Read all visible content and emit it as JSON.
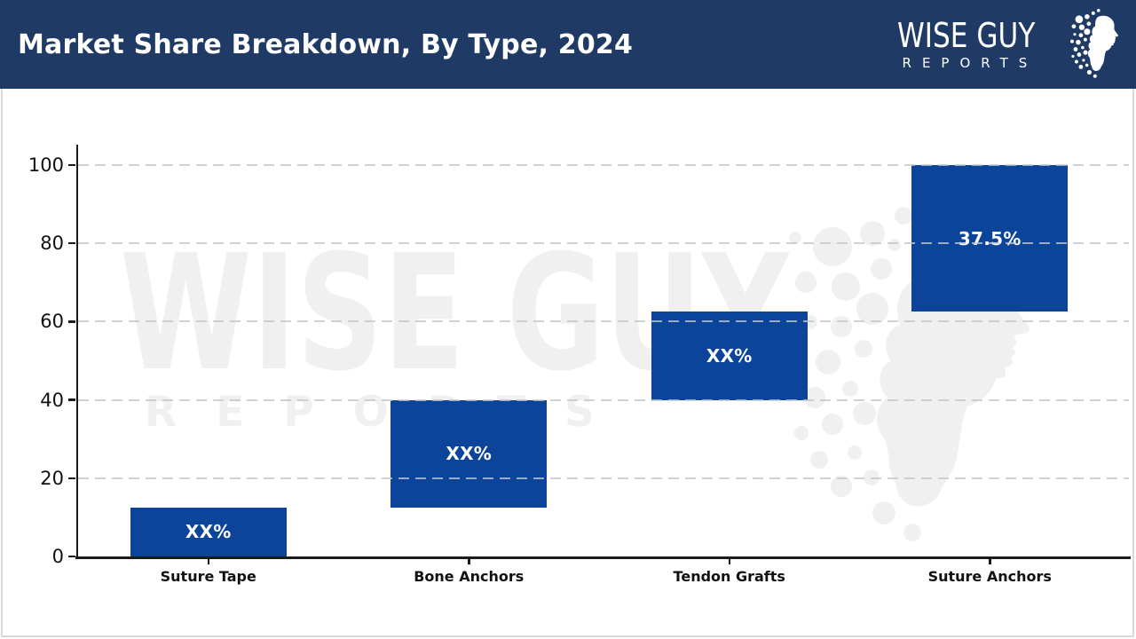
{
  "header": {
    "title": "Market Share Breakdown, By Type, 2024",
    "logo": {
      "line1": "WISE GUY",
      "line2": "REPORTS"
    }
  },
  "watermark": {
    "line1": "WISE GUY",
    "line2": "REPORTS"
  },
  "colors": {
    "header_bg": "#203a66",
    "bar": "#0b4499",
    "bar_label": "#ffffff",
    "axis": "#1a1a1a",
    "grid": "#cccccc",
    "watermark": "#f0f0f0",
    "frame_border": "#d9d9d9"
  },
  "chart_data": {
    "type": "bar",
    "subtype": "waterfall",
    "title": "Market Share Breakdown, By Type, 2024",
    "categories": [
      "Suture Tape",
      "Bone Anchors",
      "Tendon Grafts",
      "Suture Anchors"
    ],
    "values": [
      12.5,
      27.5,
      22.5,
      37.5
    ],
    "bar_labels": [
      "XX%",
      "XX%",
      "XX%",
      "37.5%"
    ],
    "segments": [
      {
        "category": "Suture Tape",
        "label": "XX%",
        "start": 0,
        "end": 12.5
      },
      {
        "category": "Bone Anchors",
        "label": "XX%",
        "start": 12.5,
        "end": 40
      },
      {
        "category": "Tendon Grafts",
        "label": "XX%",
        "start": 40,
        "end": 62.5
      },
      {
        "category": "Suture Anchors",
        "label": "37.5%",
        "start": 62.5,
        "end": 100
      }
    ],
    "xlabel": "",
    "ylabel": "",
    "ylim": [
      0,
      100
    ],
    "yticks": [
      0,
      20,
      40,
      60,
      80,
      100
    ],
    "grid": "horizontal-dashed",
    "grid_on_top": true,
    "legend": "none",
    "bar_color": "#0b4499",
    "label_color": "#ffffff"
  }
}
